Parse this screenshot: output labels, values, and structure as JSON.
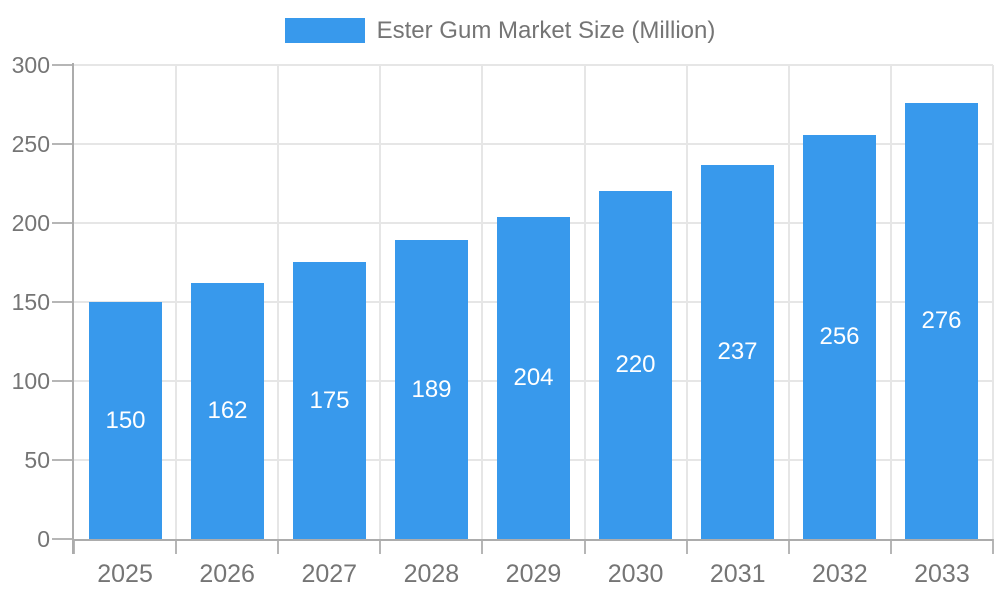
{
  "chart_data": {
    "type": "bar",
    "title": "Ester Gum Market Size (Million)",
    "legend": {
      "label": "Ester Gum Market Size (Million)",
      "position": "top-center"
    },
    "categories": [
      "2025",
      "2026",
      "2027",
      "2028",
      "2029",
      "2030",
      "2031",
      "2032",
      "2033"
    ],
    "values": [
      150,
      162,
      175,
      189,
      204,
      220,
      237,
      256,
      276
    ],
    "xlabel": "",
    "ylabel": "",
    "ylim": [
      0,
      300
    ],
    "yticks": [
      0,
      50,
      100,
      150,
      200,
      250,
      300
    ],
    "grid": true,
    "value_labels": "inside-center",
    "colors": {
      "bar": "#3899EC",
      "value_label": "#FFFFFF",
      "axis_line": "#ACACAC",
      "tick": "#B6B6B6",
      "gridline": "#E6E6E6",
      "axis_text": "#757575",
      "legend_text": "#757575",
      "background": "#FFFFFF"
    }
  }
}
